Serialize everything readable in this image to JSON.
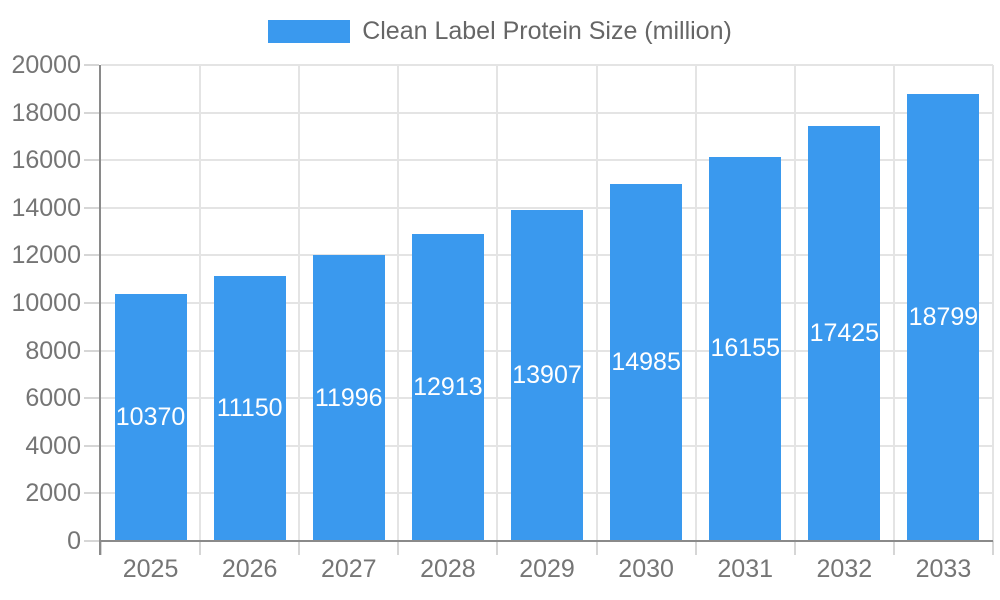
{
  "legend": {
    "label": "Clean Label Protein Size (million)"
  },
  "chart_data": {
    "type": "bar",
    "title": "Clean Label Protein Size (million)",
    "series_name": "Clean Label Protein Size (million)",
    "categories": [
      "2025",
      "2026",
      "2027",
      "2028",
      "2029",
      "2030",
      "2031",
      "2032",
      "2033"
    ],
    "values": [
      10370,
      11150,
      11996,
      12913,
      13907,
      14985,
      16155,
      17425,
      18799
    ],
    "xlabel": "",
    "ylabel": "",
    "ylim": [
      0,
      20000
    ],
    "ytick_step": 2000,
    "yticks": [
      0,
      2000,
      4000,
      6000,
      8000,
      10000,
      12000,
      14000,
      16000,
      18000,
      20000
    ],
    "grid": true,
    "legend_position": "top-center",
    "value_label_position": "inside-center",
    "colors": {
      "bar": "#3A99EE",
      "value_label_text": "#FFFFFF",
      "axis_text": "#757575",
      "legend_text": "#666666",
      "grid_line": "#E4E4E4",
      "axis_line": "#8A8A8A"
    }
  }
}
